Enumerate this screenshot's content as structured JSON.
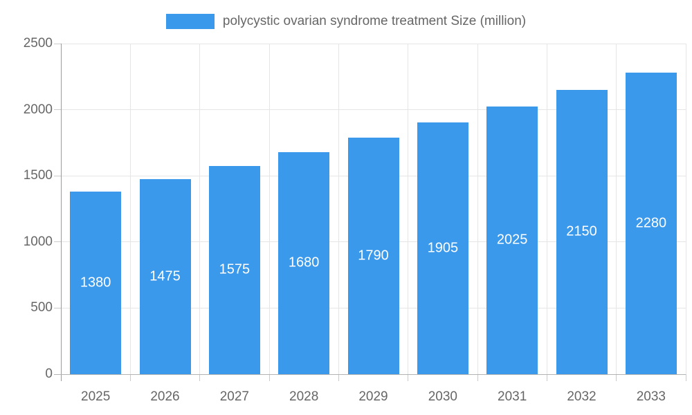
{
  "chart_data": {
    "type": "bar",
    "title": "polycystic ovarian syndrome treatment Size (million)",
    "legend": "polycystic ovarian syndrome treatment Size (million)",
    "legend_position": "top",
    "categories": [
      "2025",
      "2026",
      "2027",
      "2028",
      "2029",
      "2030",
      "2031",
      "2032",
      "2033"
    ],
    "values": [
      1380,
      1475,
      1575,
      1680,
      1790,
      1905,
      2025,
      2150,
      2280
    ],
    "bar_labels": [
      "1380",
      "1475",
      "1575",
      "1680",
      "1790",
      "1905",
      "2025",
      "2150",
      "2280"
    ],
    "xlabel": "",
    "ylabel": "",
    "ylim": [
      0,
      2500
    ],
    "yticks": [
      0,
      500,
      1000,
      1500,
      2000,
      2500
    ],
    "grid": true,
    "colors": {
      "bar": "#3b99ec",
      "bar_label": "#ffffff",
      "text": "#666666",
      "grid": "#e5e5e5",
      "axis": "#9a9a9a",
      "tick": "#cbcbcb"
    }
  }
}
